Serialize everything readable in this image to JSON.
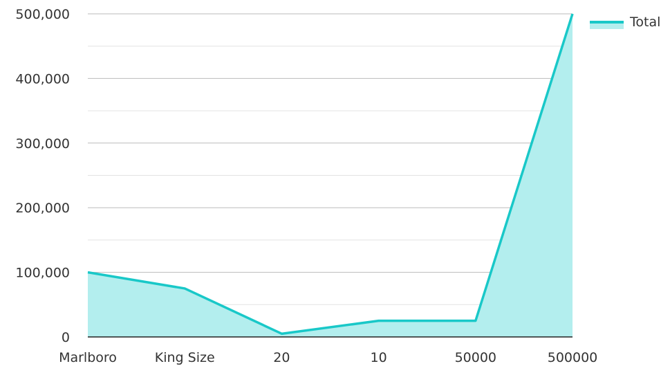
{
  "chart_data": {
    "type": "area",
    "categories": [
      "Marlboro",
      "King Size",
      "20",
      "10",
      "50000",
      "500000"
    ],
    "series": [
      {
        "name": "Total",
        "values": [
          100000,
          75000,
          5000,
          25000,
          25000,
          500000
        ]
      }
    ],
    "title": "",
    "xlabel": "",
    "ylabel": "",
    "ylim": [
      0,
      500000
    ],
    "y_ticks": [
      "0",
      "100,000",
      "200,000",
      "300,000",
      "400,000",
      "500,000"
    ],
    "y_tick_values": [
      0,
      100000,
      200000,
      300000,
      400000,
      500000
    ],
    "grid": true,
    "legend": {
      "position": "top-right",
      "entries": [
        "Total"
      ]
    },
    "colors": {
      "line": "#19c8c8",
      "fill": "#b3eeee",
      "grid": "#bbbbbb",
      "minor_grid": "#e2e2e2",
      "axis": "#222222"
    }
  }
}
